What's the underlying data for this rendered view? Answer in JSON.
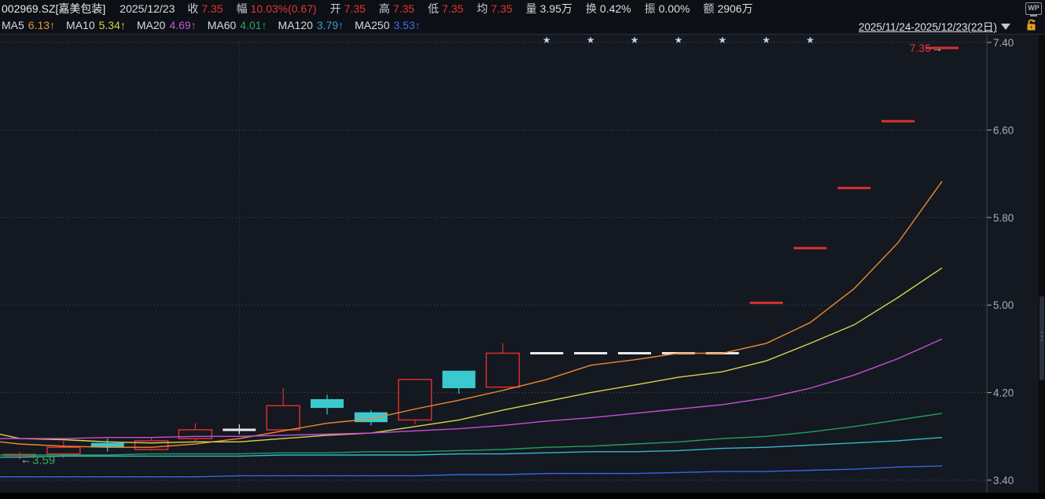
{
  "header": {
    "title": "002969.SZ[嘉美包装]",
    "date": "2025/12/23",
    "stats": [
      {
        "label": "收",
        "value": "7.35",
        "tone": "up"
      },
      {
        "label": "幅",
        "value": "10.03%(0.67)",
        "tone": "up"
      },
      {
        "label": "开",
        "value": "7.35",
        "tone": "up"
      },
      {
        "label": "高",
        "value": "7.35",
        "tone": "up"
      },
      {
        "label": "低",
        "value": "7.35",
        "tone": "up"
      },
      {
        "label": "均",
        "value": "7.35",
        "tone": "up"
      },
      {
        "label": "量",
        "value": "3.95万",
        "tone": "plain"
      },
      {
        "label": "换",
        "value": "0.42%",
        "tone": "plain"
      },
      {
        "label": "振",
        "value": "0.00%",
        "tone": "plain"
      },
      {
        "label": "额",
        "value": "2906万",
        "tone": "plain"
      }
    ],
    "wp_logo_text": "WP"
  },
  "ma_legend": [
    {
      "label": "MA5",
      "value": "6.13",
      "arrow": "↑",
      "color": "#e0953c"
    },
    {
      "label": "MA10",
      "value": "5.34",
      "arrow": "↑",
      "color": "#d6d14e"
    },
    {
      "label": "MA20",
      "value": "4.69",
      "arrow": "↑",
      "color": "#c959d9"
    },
    {
      "label": "MA60",
      "value": "4.01",
      "arrow": "↑",
      "color": "#2da463"
    },
    {
      "label": "MA120",
      "value": "3.79",
      "arrow": "↑",
      "color": "#3d9bd4"
    },
    {
      "label": "MA250",
      "value": "3.53",
      "arrow": "↑",
      "color": "#3f6de0"
    }
  ],
  "range_selector": {
    "text": "2025/11/24-2025/12/23(22日)"
  },
  "colors": {
    "background": "#141820",
    "up": "#d83030",
    "down": "#3ac9ce",
    "flat": "#e9e9e9",
    "grid": "#4e545c",
    "axis_border": "#40454d",
    "axis_text": "#a7adb5",
    "star": "#c9d2e2",
    "last_price_text": "#e23535",
    "low_price_text": "#2fae60",
    "arrow": "#d0d0d0",
    "ma5": "#ef8a2b",
    "ma10": "#d9d34f",
    "ma20": "#c94fd4",
    "ma60": "#22a05e",
    "ma120": "#38b8c8",
    "ma250": "#3666e0"
  },
  "chart_data": {
    "type": "candlestick",
    "symbol": "002969.SZ",
    "name": "嘉美包装",
    "period": "2025/11/24-2025/12/23",
    "days": 22,
    "ylim": [
      3.4,
      7.4
    ],
    "y_axis_labels": [
      "7.40",
      "6.60",
      "5.80",
      "5.00",
      "4.20",
      "3.40"
    ],
    "y_axis_values": [
      7.4,
      6.6,
      5.8,
      5.0,
      4.2,
      3.4
    ],
    "month_separator_day_index": 5,
    "candles": [
      {
        "date": "2025/11/24",
        "o": 3.63,
        "h": 3.66,
        "l": 3.59,
        "c": 3.63,
        "color": "red",
        "star": false
      },
      {
        "date": "2025/11/25",
        "o": 3.64,
        "h": 3.76,
        "l": 3.6,
        "c": 3.7,
        "color": "red",
        "star": false
      },
      {
        "date": "2025/11/26",
        "o": 3.74,
        "h": 3.78,
        "l": 3.66,
        "c": 3.7,
        "color": "cyan",
        "star": false
      },
      {
        "date": "2025/11/27",
        "o": 3.68,
        "h": 3.79,
        "l": 3.67,
        "c": 3.76,
        "color": "red",
        "star": false
      },
      {
        "date": "2025/11/28",
        "o": 3.78,
        "h": 3.92,
        "l": 3.76,
        "c": 3.86,
        "color": "red",
        "star": false
      },
      {
        "date": "2025/12/01",
        "o": 3.86,
        "h": 3.91,
        "l": 3.82,
        "c": 3.86,
        "color": "white",
        "star": false
      },
      {
        "date": "2025/12/02",
        "o": 3.86,
        "h": 4.24,
        "l": 3.85,
        "c": 4.08,
        "color": "red",
        "star": false
      },
      {
        "date": "2025/12/03",
        "o": 4.14,
        "h": 4.18,
        "l": 4.0,
        "c": 4.06,
        "color": "cyan",
        "star": false
      },
      {
        "date": "2025/12/04",
        "o": 4.02,
        "h": 4.04,
        "l": 3.9,
        "c": 3.93,
        "color": "cyan",
        "star": false
      },
      {
        "date": "2025/12/05",
        "o": 3.95,
        "h": 4.32,
        "l": 3.91,
        "c": 4.32,
        "color": "red",
        "star": false
      },
      {
        "date": "2025/12/08",
        "o": 4.4,
        "h": 4.4,
        "l": 4.19,
        "c": 4.24,
        "color": "cyan",
        "star": false
      },
      {
        "date": "2025/12/09",
        "o": 4.25,
        "h": 4.65,
        "l": 4.25,
        "c": 4.56,
        "color": "red",
        "star": false
      },
      {
        "date": "2025/12/10",
        "o": 4.56,
        "h": 4.56,
        "l": 4.56,
        "c": 4.56,
        "color": "white",
        "star": true
      },
      {
        "date": "2025/12/11",
        "o": 4.56,
        "h": 4.56,
        "l": 4.56,
        "c": 4.56,
        "color": "white",
        "star": true
      },
      {
        "date": "2025/12/12",
        "o": 4.56,
        "h": 4.56,
        "l": 4.56,
        "c": 4.56,
        "color": "white",
        "star": true
      },
      {
        "date": "2025/12/15",
        "o": 4.56,
        "h": 4.56,
        "l": 4.56,
        "c": 4.56,
        "color": "white",
        "star": true
      },
      {
        "date": "2025/12/16",
        "o": 4.56,
        "h": 4.56,
        "l": 4.56,
        "c": 4.56,
        "color": "white",
        "star": true
      },
      {
        "date": "2025/12/17",
        "o": 5.02,
        "h": 5.02,
        "l": 5.02,
        "c": 5.02,
        "color": "red",
        "star": true
      },
      {
        "date": "2025/12/18",
        "o": 5.52,
        "h": 5.52,
        "l": 5.52,
        "c": 5.52,
        "color": "red",
        "star": true
      },
      {
        "date": "2025/12/19",
        "o": 6.07,
        "h": 6.07,
        "l": 6.07,
        "c": 6.07,
        "color": "red",
        "star": false
      },
      {
        "date": "2025/12/22",
        "o": 6.68,
        "h": 6.68,
        "l": 6.68,
        "c": 6.68,
        "color": "red",
        "star": false
      },
      {
        "date": "2025/12/23",
        "o": 7.35,
        "h": 7.35,
        "l": 7.35,
        "c": 7.35,
        "color": "red",
        "star": false
      }
    ],
    "ma_series": [
      {
        "name": "MA5",
        "color_key": "ma5",
        "lead_in": 3.75,
        "values": [
          3.73,
          3.71,
          3.7,
          3.7,
          3.73,
          3.78,
          3.85,
          3.92,
          3.96,
          4.05,
          4.13,
          4.22,
          4.32,
          4.45,
          4.5,
          4.56,
          4.56,
          4.65,
          4.84,
          5.15,
          5.57,
          6.13
        ]
      },
      {
        "name": "MA10",
        "color_key": "ma10",
        "lead_in": 3.82,
        "values": [
          3.78,
          3.77,
          3.75,
          3.74,
          3.75,
          3.75,
          3.78,
          3.81,
          3.83,
          3.89,
          3.95,
          4.04,
          4.12,
          4.2,
          4.27,
          4.34,
          4.39,
          4.49,
          4.65,
          4.82,
          5.07,
          5.34
        ]
      },
      {
        "name": "MA20",
        "color_key": "ma20",
        "lead_in": 3.78,
        "values": [
          3.78,
          3.78,
          3.79,
          3.79,
          3.8,
          3.8,
          3.81,
          3.82,
          3.83,
          3.85,
          3.87,
          3.9,
          3.94,
          3.97,
          4.01,
          4.05,
          4.09,
          4.15,
          4.24,
          4.36,
          4.51,
          4.69
        ]
      },
      {
        "name": "MA60",
        "color_key": "ma60",
        "lead_in": 3.63,
        "values": [
          3.63,
          3.63,
          3.63,
          3.64,
          3.64,
          3.64,
          3.65,
          3.65,
          3.66,
          3.66,
          3.67,
          3.68,
          3.7,
          3.71,
          3.73,
          3.75,
          3.78,
          3.8,
          3.84,
          3.89,
          3.95,
          4.01
        ]
      },
      {
        "name": "MA120",
        "color_key": "ma120",
        "lead_in": 3.61,
        "values": [
          3.61,
          3.62,
          3.62,
          3.62,
          3.62,
          3.62,
          3.63,
          3.63,
          3.63,
          3.63,
          3.64,
          3.64,
          3.65,
          3.66,
          3.66,
          3.67,
          3.69,
          3.7,
          3.72,
          3.74,
          3.76,
          3.79
        ]
      },
      {
        "name": "MA250",
        "color_key": "ma250",
        "lead_in": 3.43,
        "values": [
          3.43,
          3.43,
          3.43,
          3.43,
          3.43,
          3.44,
          3.44,
          3.44,
          3.44,
          3.44,
          3.45,
          3.45,
          3.46,
          3.46,
          3.46,
          3.47,
          3.48,
          3.48,
          3.49,
          3.5,
          3.52,
          3.53
        ]
      }
    ],
    "annotations": {
      "lowest_price_marker": {
        "day_index": 0,
        "price": 3.59,
        "text": "3.59",
        "arrow": "←"
      },
      "last_price_marker": {
        "day_index": 21,
        "price": 7.35,
        "text": "7.35",
        "arrow": "→"
      }
    }
  }
}
